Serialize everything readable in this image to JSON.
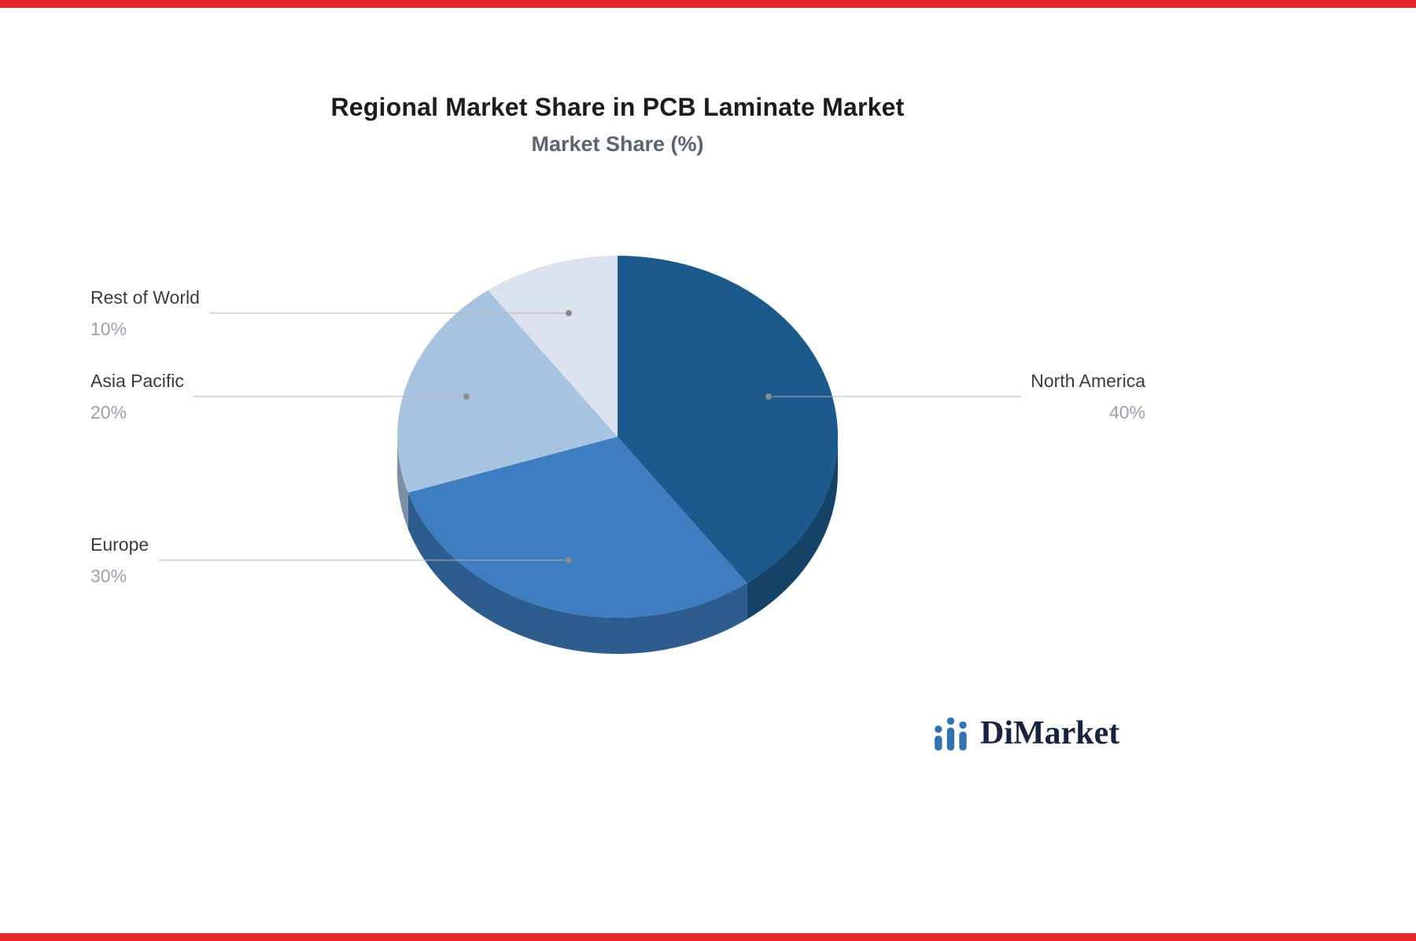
{
  "page": {
    "background": "#ffffff",
    "accent_color": "#e8282c"
  },
  "chart_data": {
    "type": "pie",
    "style": "3d-pie",
    "title": "Regional Market Share in PCB Laminate Market",
    "subtitle": "Market Share (%)",
    "unit": "%",
    "start_angle_deg": 0,
    "direction": "clockwise",
    "legend_position": "none",
    "labels_as": "callout-lines",
    "slices": [
      {
        "label": "North America",
        "value": 40,
        "display": "40%",
        "color": "#1c5a8d"
      },
      {
        "label": "Europe",
        "value": 30,
        "display": "30%",
        "color": "#3d7ec0"
      },
      {
        "label": "Asia Pacific",
        "value": 20,
        "display": "20%",
        "color": "#a6c3df"
      },
      {
        "label": "Rest of World",
        "value": 10,
        "display": "10%",
        "color": "#dce3ee"
      }
    ]
  },
  "callout_style": {
    "line_color": "#b5b5b5",
    "dot_color": "#8c8c8c",
    "label_color": "#3c3c3c",
    "value_color": "#9ba1a8"
  },
  "brand": {
    "name": "DiMarket",
    "icon": "bar-chart-logo-icon",
    "icon_color": "#2e74b5",
    "text_color": "#17233f"
  }
}
